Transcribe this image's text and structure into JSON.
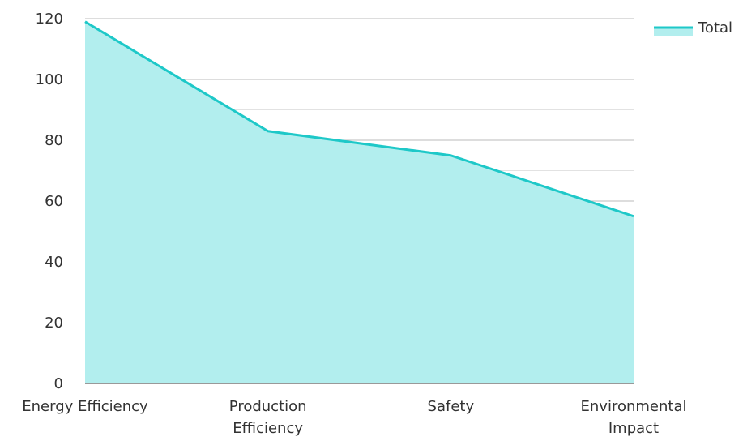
{
  "chart_data": {
    "type": "area",
    "categories": [
      [
        "Energy Efficiency"
      ],
      [
        "Production",
        "Efficiency"
      ],
      [
        "Safety"
      ],
      [
        "Environmental",
        "Impact"
      ]
    ],
    "series": [
      {
        "name": "Total",
        "values": [
          119,
          83,
          75,
          55
        ]
      }
    ],
    "ylim": [
      0,
      120
    ],
    "yticks": [
      0,
      20,
      40,
      60,
      80,
      100,
      120
    ],
    "grid": true,
    "legend": "top-right",
    "colors": {
      "line": "#1ec8c8",
      "fill": "#b2eeee",
      "grid_major": "#bbbbbb",
      "grid_minor": "#e2e2e2",
      "axis": "#333333"
    }
  }
}
